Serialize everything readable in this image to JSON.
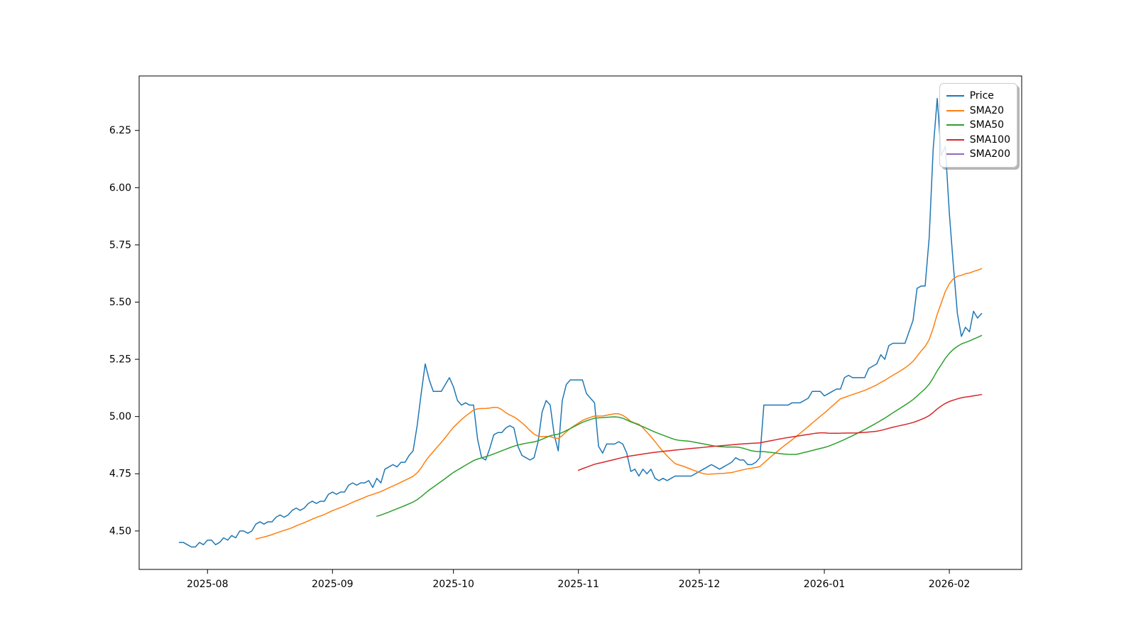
{
  "figure": {
    "background_color": "#ffffff",
    "axes_edge_color": "#000000"
  },
  "legend": {
    "position": "upper right",
    "items": [
      {
        "label": "Price",
        "color": "#1f77b4"
      },
      {
        "label": "SMA20",
        "color": "#ff7f0e"
      },
      {
        "label": "SMA50",
        "color": "#2ca02c"
      },
      {
        "label": "SMA100",
        "color": "#d62728"
      },
      {
        "label": "SMA200",
        "color": "#9467bd"
      }
    ]
  },
  "chart_data": {
    "type": "line",
    "title": "",
    "xlabel": "",
    "ylabel": "",
    "grid": false,
    "legend_position": "upper right",
    "x_start_date": "2025-07-25",
    "x_end_date": "2026-02-09",
    "x_interval": "daily",
    "x_ticks": [
      {
        "label": "2025-08",
        "day_index": 7
      },
      {
        "label": "2025-09",
        "day_index": 38
      },
      {
        "label": "2025-10",
        "day_index": 68
      },
      {
        "label": "2025-11",
        "day_index": 99
      },
      {
        "label": "2025-12",
        "day_index": 129
      },
      {
        "label": "2026-01",
        "day_index": 160
      },
      {
        "label": "2026-02",
        "day_index": 191
      }
    ],
    "y_ticks": [
      "4.50",
      "4.75",
      "5.00",
      "5.25",
      "5.50",
      "5.75",
      "6.00",
      "6.25"
    ],
    "ylim_approx": [
      4.33,
      6.49
    ],
    "margin_fraction": 0.05,
    "series": [
      {
        "name": "Price",
        "color": "#1f77b4",
        "kind": "raw",
        "line_width": 1.5
      },
      {
        "name": "SMA20",
        "color": "#ff7f0e",
        "kind": "sma",
        "window": 20,
        "line_width": 1.5
      },
      {
        "name": "SMA50",
        "color": "#2ca02c",
        "kind": "sma",
        "window": 50,
        "line_width": 1.5
      },
      {
        "name": "SMA100",
        "color": "#d62728",
        "kind": "sma",
        "window": 100,
        "line_width": 1.5
      },
      {
        "name": "SMA200",
        "color": "#9467bd",
        "kind": "sma",
        "window": 200,
        "line_width": 1.5
      }
    ],
    "price_values": [
      4.45,
      4.45,
      4.44,
      4.43,
      4.43,
      4.45,
      4.44,
      4.46,
      4.46,
      4.44,
      4.45,
      4.47,
      4.46,
      4.48,
      4.47,
      4.5,
      4.5,
      4.49,
      4.5,
      4.53,
      4.54,
      4.53,
      4.54,
      4.54,
      4.56,
      4.57,
      4.56,
      4.57,
      4.59,
      4.6,
      4.59,
      4.6,
      4.62,
      4.63,
      4.62,
      4.63,
      4.63,
      4.66,
      4.67,
      4.66,
      4.67,
      4.67,
      4.7,
      4.71,
      4.7,
      4.71,
      4.71,
      4.72,
      4.69,
      4.73,
      4.71,
      4.77,
      4.78,
      4.79,
      4.78,
      4.8,
      4.8,
      4.83,
      4.85,
      4.96,
      5.1,
      5.23,
      5.16,
      5.11,
      5.11,
      5.11,
      5.14,
      5.17,
      5.13,
      5.07,
      5.05,
      5.06,
      5.05,
      5.05,
      4.9,
      4.82,
      4.81,
      4.86,
      4.92,
      4.93,
      4.93,
      4.95,
      4.96,
      4.95,
      4.87,
      4.83,
      4.82,
      4.81,
      4.82,
      4.89,
      5.02,
      5.07,
      5.05,
      4.92,
      4.85,
      5.07,
      5.14,
      5.16,
      5.16,
      5.16,
      5.16,
      5.1,
      5.08,
      5.06,
      4.87,
      4.84,
      4.88,
      4.88,
      4.88,
      4.89,
      4.88,
      4.84,
      4.76,
      4.77,
      4.74,
      4.77,
      4.75,
      4.77,
      4.73,
      4.72,
      4.73,
      4.72,
      4.73,
      4.74,
      4.74,
      4.74,
      4.74,
      4.74,
      4.75,
      4.76,
      4.77,
      4.78,
      4.79,
      4.78,
      4.77,
      4.78,
      4.79,
      4.8,
      4.82,
      4.81,
      4.81,
      4.79,
      4.79,
      4.8,
      4.82,
      5.05,
      5.05,
      5.05,
      5.05,
      5.05,
      5.05,
      5.05,
      5.06,
      5.06,
      5.06,
      5.07,
      5.08,
      5.11,
      5.11,
      5.11,
      5.09,
      5.1,
      5.11,
      5.12,
      5.12,
      5.17,
      5.18,
      5.17,
      5.17,
      5.17,
      5.17,
      5.21,
      5.22,
      5.23,
      5.27,
      5.25,
      5.31,
      5.32,
      5.32,
      5.32,
      5.32,
      5.37,
      5.42,
      5.56,
      5.57,
      5.57,
      5.78,
      6.17,
      6.39,
      6.14,
      6.18,
      5.89,
      5.66,
      5.45,
      5.35,
      5.39,
      5.37,
      5.46,
      5.43,
      5.45
    ]
  }
}
